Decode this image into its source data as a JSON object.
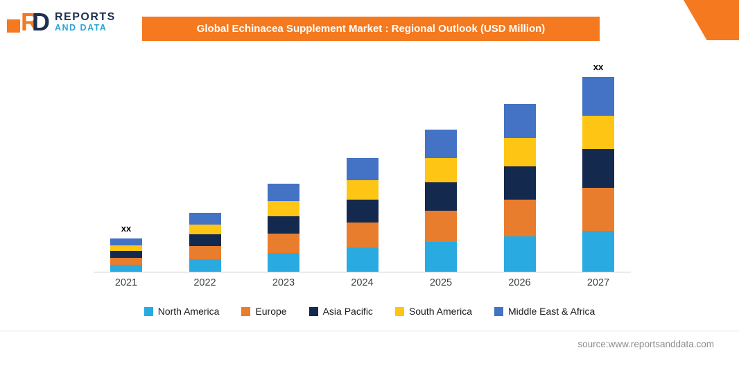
{
  "logo": {
    "mark_r": "R",
    "mark_d": "D",
    "line1": "REPORTS",
    "line2": "AND DATA"
  },
  "header": {
    "title": "Global Echinacea Supplement Market : Regional Outlook (USD Million)",
    "banner_color": "#F4791F"
  },
  "chart_data": {
    "type": "bar",
    "stacked": true,
    "title": "Global Echinacea Supplement Market : Regional Outlook (USD Million)",
    "xlabel": "",
    "ylabel": "USD Million",
    "legend_position": "bottom",
    "grid": false,
    "categories": [
      "2021",
      "2022",
      "2023",
      "2024",
      "2025",
      "2026",
      "2027"
    ],
    "series": [
      {
        "name": "North America",
        "color": "#29ABE2",
        "values": [
          10,
          18,
          27,
          35,
          43,
          51,
          59
        ]
      },
      {
        "name": "Europe",
        "color": "#E87D2E",
        "values": [
          10,
          19,
          28,
          36,
          45,
          53,
          62
        ]
      },
      {
        "name": "Asia Pacific",
        "color": "#14294E",
        "values": [
          10,
          17,
          25,
          33,
          41,
          48,
          56
        ]
      },
      {
        "name": "South America",
        "color": "#FFC515",
        "values": [
          8,
          14,
          22,
          28,
          35,
          41,
          48
        ]
      },
      {
        "name": "Middle East & Africa",
        "color": "#4472C4",
        "values": [
          10,
          17,
          25,
          32,
          41,
          49,
          56
        ]
      }
    ],
    "annotations": [
      {
        "category": "2021",
        "text": "xx"
      },
      {
        "category": "2027",
        "text": "xx"
      }
    ]
  },
  "footer": {
    "source": "source:www.reportsanddata.com"
  }
}
